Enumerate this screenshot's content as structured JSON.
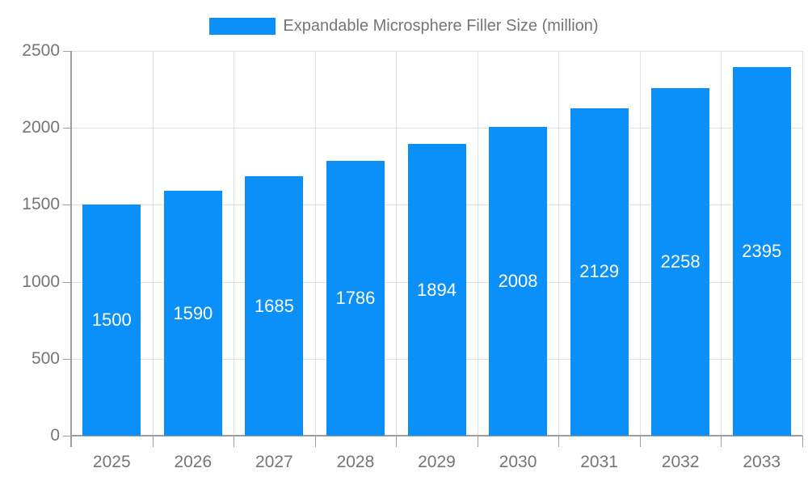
{
  "chart_data": {
    "type": "bar",
    "title": "Expandable Microsphere Filler Size (million)",
    "categories": [
      "2025",
      "2026",
      "2027",
      "2028",
      "2029",
      "2030",
      "2031",
      "2032",
      "2033"
    ],
    "values": [
      1500,
      1590,
      1685,
      1786,
      1894,
      2008,
      2129,
      2258,
      2395
    ],
    "value_labels": [
      "1500",
      "1590",
      "1685",
      "1786",
      "1894",
      "2008",
      "2129",
      "2258",
      "2395"
    ],
    "xlabel": "",
    "ylabel": "",
    "ylim": [
      0,
      2500
    ],
    "yticks": [
      0,
      500,
      1000,
      1500,
      2000,
      2500
    ],
    "ytick_labels": [
      "0",
      "500",
      "1000",
      "1500",
      "2000",
      "2500"
    ],
    "grid": true,
    "legend_position": "top",
    "colors": {
      "bar": "#0A90F8",
      "axis": "#9E9E9E",
      "grid": "#E0E0E0",
      "tick_label": "#757575",
      "value_label": "#FFFFFF",
      "background": "#FFFFFF"
    }
  }
}
